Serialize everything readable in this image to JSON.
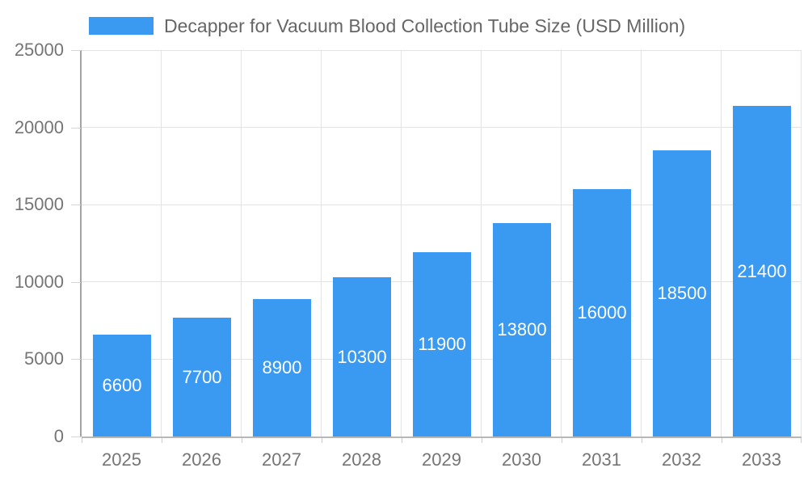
{
  "legend": {
    "label": "Decapper for Vacuum Blood Collection Tube Size (USD Million)",
    "swatch_color": "#3A99F1"
  },
  "chart_data": {
    "type": "bar",
    "title": "Decapper for Vacuum Blood Collection Tube Size (USD Million)",
    "categories": [
      "2025",
      "2026",
      "2027",
      "2028",
      "2029",
      "2030",
      "2031",
      "2032",
      "2033"
    ],
    "values": [
      6600,
      7700,
      8900,
      10300,
      11900,
      13800,
      16000,
      18500,
      21400
    ],
    "xlabel": "",
    "ylabel": "",
    "ylim": [
      0,
      25000
    ],
    "yticks": [
      0,
      5000,
      10000,
      15000,
      20000,
      25000
    ],
    "grid": true,
    "legend_position": "top-left",
    "bar_color": "#3A99F1",
    "value_label_color": "#ffffff"
  },
  "colors": {
    "background": "#ffffff",
    "bar": "#3A99F1",
    "gridline": "#e3e3e3",
    "y_axis_line": "#a3a3a3",
    "x_axis_line": "#b8b8b8",
    "tick_text": "#757575",
    "legend_text": "#666666"
  }
}
